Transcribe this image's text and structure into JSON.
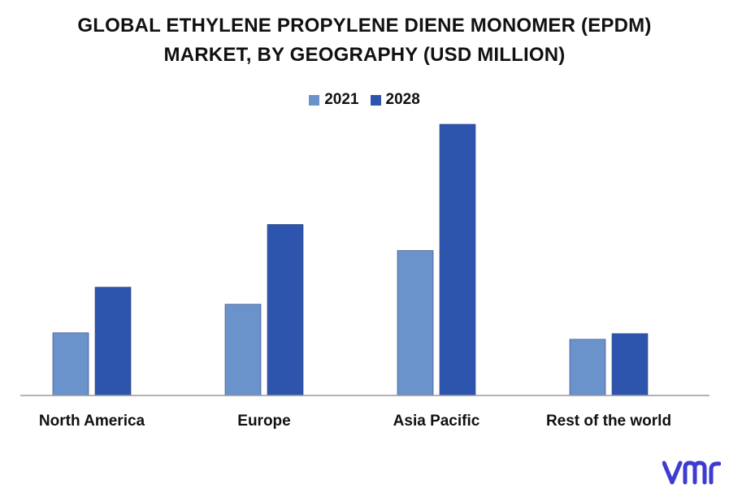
{
  "chart_data": {
    "type": "bar",
    "title_lines": [
      "GLOBAL ETHYLENE PROPYLENE DIENE MONOMER (EPDM)",
      "MARKET, BY GEOGRAPHY (USD MILLION)"
    ],
    "categories": [
      "North America",
      "Europe",
      "Asia Pacific",
      "Rest of the world"
    ],
    "series": [
      {
        "name": "2021",
        "color": "#6a92cb",
        "values": [
          77,
          112,
          178,
          69
        ]
      },
      {
        "name": "2028",
        "color": "#2e55ad",
        "values": [
          133,
          210,
          333,
          76
        ]
      }
    ],
    "ylim": [
      0,
      340
    ],
    "grid": false,
    "legend_position": "top-center"
  },
  "logo": {
    "icon": "vmr-logo-icon",
    "color": "#3d3ccf"
  }
}
